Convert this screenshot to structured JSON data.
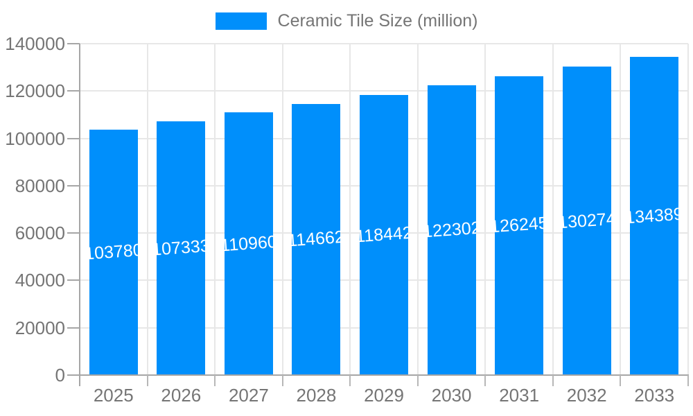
{
  "legend": {
    "label": "Ceramic Tile Size (million)",
    "swatch_color": "#008FFB"
  },
  "chart_data": {
    "type": "bar",
    "title": "Ceramic Tile Size (million)",
    "series": [
      {
        "name": "Ceramic Tile Size (million)",
        "values": [
          103780,
          107333,
          110960,
          114662,
          118442,
          122302,
          126245,
          130274,
          134389
        ]
      }
    ],
    "categories": [
      "2025",
      "2026",
      "2027",
      "2028",
      "2029",
      "2030",
      "2031",
      "2032",
      "2033"
    ],
    "xlabel": "",
    "ylabel": "",
    "ylim": [
      0,
      140000
    ],
    "ytick_labels": [
      "0",
      "20000",
      "40000",
      "60000",
      "80000",
      "100000",
      "120000",
      "140000"
    ],
    "grid": true,
    "legend_position": "top",
    "colors": {
      "bar": "#008FFB",
      "bar_label_text": "#ffffff",
      "axis_text": "#757575",
      "gridline": "#e7e7e7",
      "axis_line": "#a6a6a6"
    }
  }
}
